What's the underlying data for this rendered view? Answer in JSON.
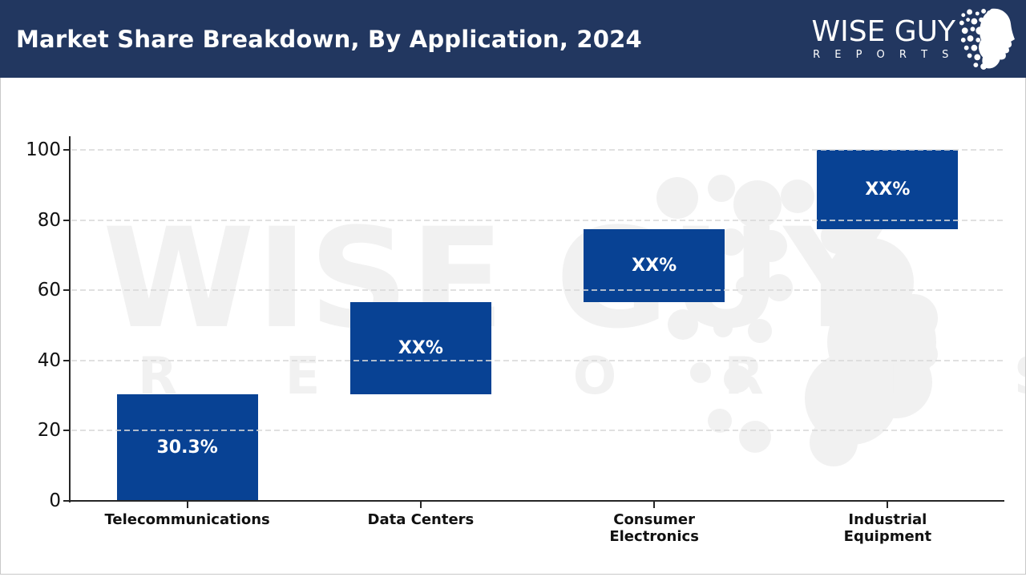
{
  "header": {
    "title": "Market Share Breakdown, By Application, 2024",
    "logo": {
      "wordmark": "WISE GUY",
      "subtext": "R E P O R T S"
    }
  },
  "watermark": {
    "wordmark": "WISE GUY",
    "subtext": "R E P O R T S"
  },
  "chart_data": {
    "type": "bar",
    "subtype": "waterfall",
    "title": "Market Share Breakdown, By Application, 2024",
    "categories": [
      "Telecommunications",
      "Data Centers",
      "Consumer Electronics",
      "Industrial Equipment"
    ],
    "segments": [
      {
        "category": "Telecommunications",
        "label_lines": [
          "Telecommunications"
        ],
        "start": 0,
        "end": 30.3,
        "value_label": "30.3%"
      },
      {
        "category": "Data Centers",
        "label_lines": [
          "Data Centers"
        ],
        "start": 30.3,
        "end": 56.6,
        "value_label": "XX%"
      },
      {
        "category": "Consumer Electronics",
        "label_lines": [
          "Consumer",
          "Electronics"
        ],
        "start": 56.6,
        "end": 77.4,
        "value_label": "XX%"
      },
      {
        "category": "Industrial Equipment",
        "label_lines": [
          "Industrial",
          "Equipment"
        ],
        "start": 77.4,
        "end": 100,
        "value_label": "XX%"
      }
    ],
    "xlabel": "",
    "ylabel": "",
    "ylim": [
      0,
      100
    ],
    "yticks": [
      0,
      20,
      40,
      60,
      80,
      100
    ],
    "grid": "horizontal-dashed",
    "legend": "none",
    "bar_color": "#084294",
    "value_label_color": "#ffffff"
  },
  "colors": {
    "header_bg": "#223760",
    "header_text": "#ffffff",
    "bar": "#084294",
    "axis": "#262626",
    "gridline": "#d9d9d9",
    "watermark": "#f1f1f1",
    "frame_border": "#c9c9c9",
    "background": "#ffffff"
  }
}
